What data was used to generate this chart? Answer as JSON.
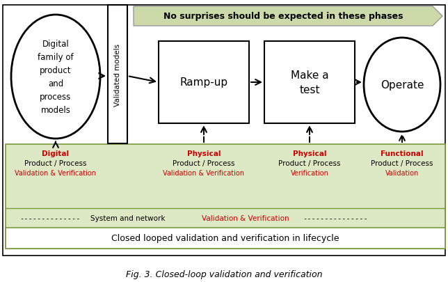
{
  "title": "Fig. 3. Closed-loop validation and verification",
  "bg_color": "#ffffff",
  "light_green": "#dce9c4",
  "dark_green": "#7a9a3a",
  "red_color": "#cc0000",
  "black": "#000000",
  "banner_bg": "#ccd9a8",
  "banner_border": "#999999",
  "banner_text": "No surprises should be expected in these phases",
  "ellipse1_text": "Digital\nfamily of\nproduct\nand\nprocess\nmodels",
  "rect1_text": "Validated models",
  "rect2_text": "Ramp-up",
  "rect3_text": "Make a\ntest",
  "ellipse2_text": "Operate",
  "bottom_box_text": "Closed looped validation and verification in lifecycle",
  "col1_red": "Digital",
  "col1_black": "Product / Process",
  "col1_red2": "Validation & Verification",
  "col2_red": "Physical",
  "col2_black": "Product / Process",
  "col2_red2": "Validation & Verification",
  "col3_red": "Physical",
  "col3_black": "Product / Process",
  "col3_red2": "Verification",
  "col4_red": "Functional",
  "col4_black": "Product / Process",
  "col4_red2": "Validation",
  "sys_pre_dash": "--------------",
  "sys_black": "System and network ",
  "sys_red": "Validation & Verification",
  "sys_post_dash": "---------------"
}
